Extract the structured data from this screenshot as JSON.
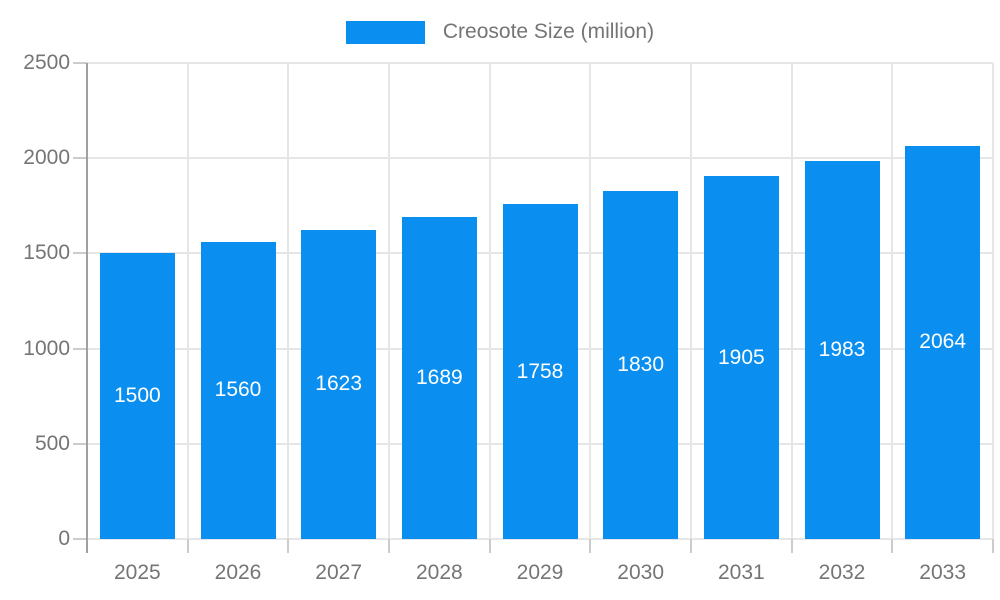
{
  "chart_data": {
    "type": "bar",
    "title": "",
    "legend": {
      "label": "Creosote Size (million)",
      "position": "top"
    },
    "categories": [
      "2025",
      "2026",
      "2027",
      "2028",
      "2029",
      "2030",
      "2031",
      "2032",
      "2033"
    ],
    "series": [
      {
        "name": "Creosote Size (million)",
        "values": [
          1500,
          1560,
          1623,
          1689,
          1758,
          1830,
          1905,
          1983,
          2064
        ]
      }
    ],
    "xlabel": "",
    "ylabel": "",
    "ylim": [
      0,
      2500
    ],
    "yticks": [
      0,
      500,
      1000,
      1500,
      2000,
      2500
    ],
    "grid": true,
    "colors": {
      "bar": "#0a8ff0",
      "bar_value_label": "#ffffff",
      "axis_text": "#757575",
      "gridline": "#e6e6e6",
      "axis_line": "#a0a0a0",
      "tick": "#cccccc",
      "background": "#ffffff"
    }
  }
}
